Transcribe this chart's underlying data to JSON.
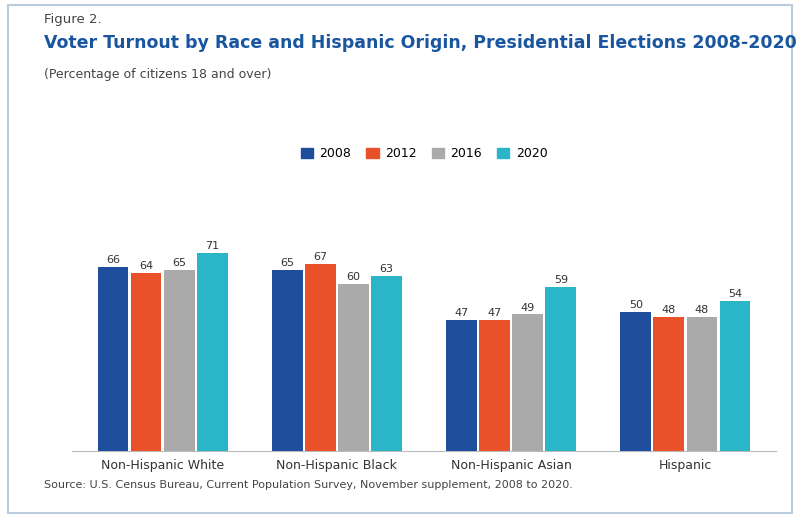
{
  "figure_label": "Figure 2.",
  "title": "Voter Turnout by Race and Hispanic Origin, Presidential Elections 2008-2020",
  "subtitle": "(Percentage of citizens 18 and over)",
  "source": "Source: U.S. Census Bureau, Current Population Survey, November supplement, 2008 to 2020.",
  "categories": [
    "Non-Hispanic White",
    "Non-Hispanic Black",
    "Non-Hispanic Asian",
    "Hispanic"
  ],
  "years": [
    "2008",
    "2012",
    "2016",
    "2020"
  ],
  "colors": [
    "#1F4E9E",
    "#E8512A",
    "#AAAAAA",
    "#2BB5C8"
  ],
  "values": [
    [
      66,
      64,
      65,
      71
    ],
    [
      65,
      67,
      60,
      63
    ],
    [
      47,
      47,
      49,
      59
    ],
    [
      50,
      48,
      48,
      54
    ]
  ],
  "ylim": [
    0,
    82
  ],
  "bar_width": 0.19,
  "background_color": "#FFFFFF",
  "border_color": "#BBCCDD",
  "title_color": "#1A56A0",
  "figure_label_color": "#444444",
  "subtitle_color": "#444444",
  "source_color": "#444444",
  "title_fontsize": 12.5,
  "figure_label_fontsize": 9.5,
  "subtitle_fontsize": 9,
  "source_fontsize": 8,
  "legend_fontsize": 9,
  "xtick_fontsize": 9,
  "value_label_fontsize": 8
}
